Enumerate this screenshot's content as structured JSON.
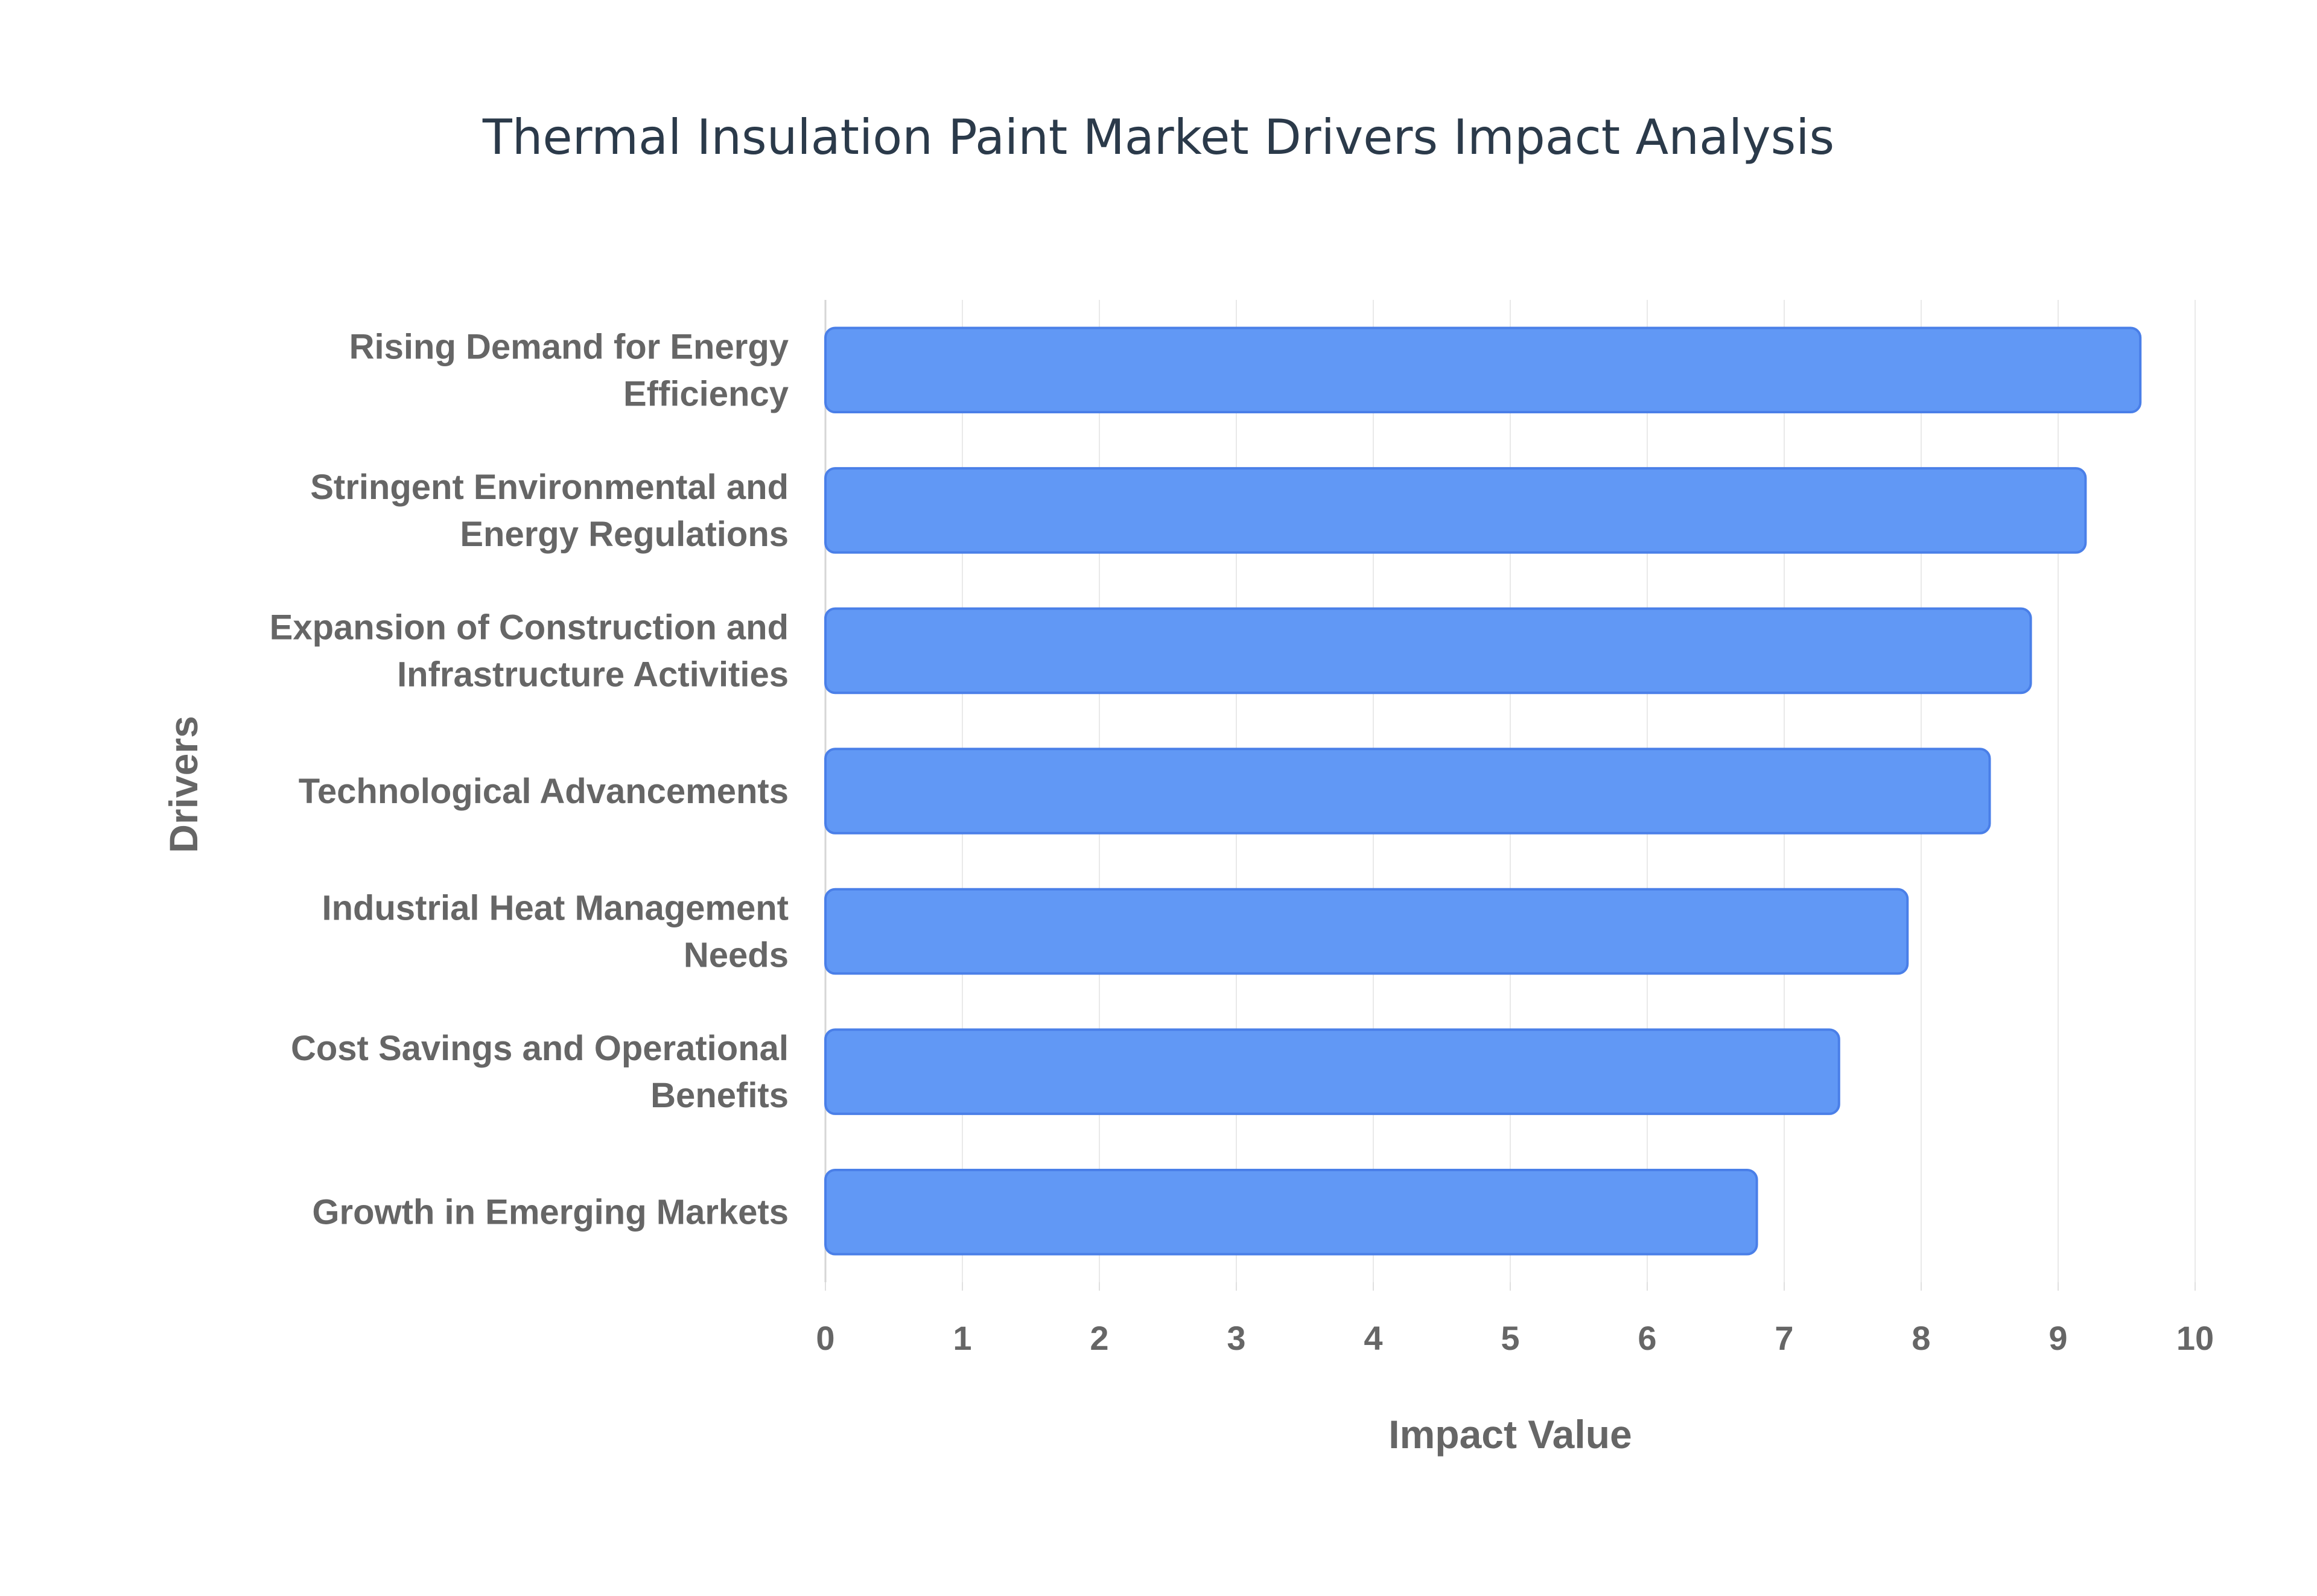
{
  "chart_data": {
    "type": "bar",
    "orientation": "horizontal",
    "title": "Thermal Insulation Paint Market Drivers Impact Analysis",
    "xlabel": "Impact Value",
    "ylabel": "Drivers",
    "xlim": [
      0,
      10
    ],
    "xticks": [
      0,
      1,
      2,
      3,
      4,
      5,
      6,
      7,
      8,
      9,
      10
    ],
    "grid": true,
    "bar_color": "#6198f5",
    "bar_edge_color": "#4a7fe8",
    "categories": [
      [
        "Rising Demand for Energy",
        "Efficiency"
      ],
      [
        "Stringent Environmental and",
        "Energy Regulations"
      ],
      [
        "Expansion of Construction and",
        "Infrastructure Activities"
      ],
      [
        "Technological Advancements"
      ],
      [
        "Industrial Heat Management",
        "Needs"
      ],
      [
        "Cost Savings and Operational",
        "Benefits"
      ],
      [
        "Growth in Emerging Markets"
      ]
    ],
    "values": [
      9.6,
      9.2,
      8.8,
      8.5,
      7.9,
      7.4,
      6.8
    ]
  }
}
